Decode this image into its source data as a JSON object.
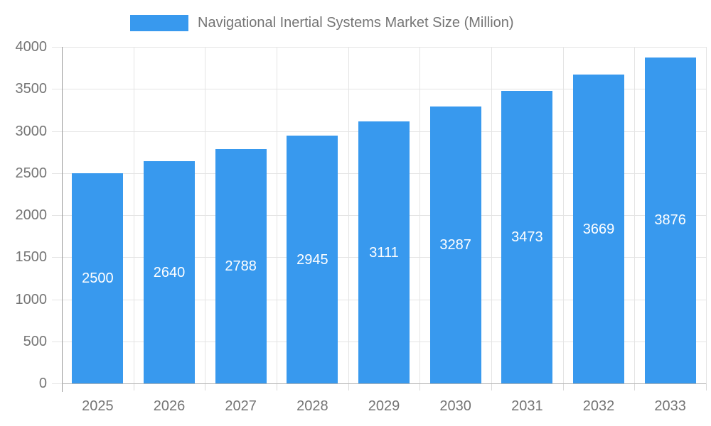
{
  "chart_data": {
    "type": "bar",
    "title": "Navigational Inertial Systems Market Size (Million)",
    "legend": {
      "position": "top",
      "label": "Navigational Inertial Systems Market Size (Million)"
    },
    "categories": [
      "2025",
      "2026",
      "2027",
      "2028",
      "2029",
      "2030",
      "2031",
      "2032",
      "2033"
    ],
    "values": [
      2500,
      2640,
      2788,
      2945,
      3111,
      3287,
      3473,
      3669,
      3876
    ],
    "value_labels_inside_bars": true,
    "xlabel": "",
    "ylabel": "",
    "ylim": [
      0,
      4000
    ],
    "yticks": [
      0,
      500,
      1000,
      1500,
      2000,
      2500,
      3000,
      3500,
      4000
    ],
    "grid": "on",
    "colors": {
      "bar": "#3899EE",
      "grid": "#E4E4E4",
      "axis_line": "#999999",
      "baseline": "#B3B3B3",
      "tick": "#D9D9D9",
      "axis_text": "#757575",
      "value_label": "#FFFFFF",
      "background": "#FFFFFF"
    }
  }
}
